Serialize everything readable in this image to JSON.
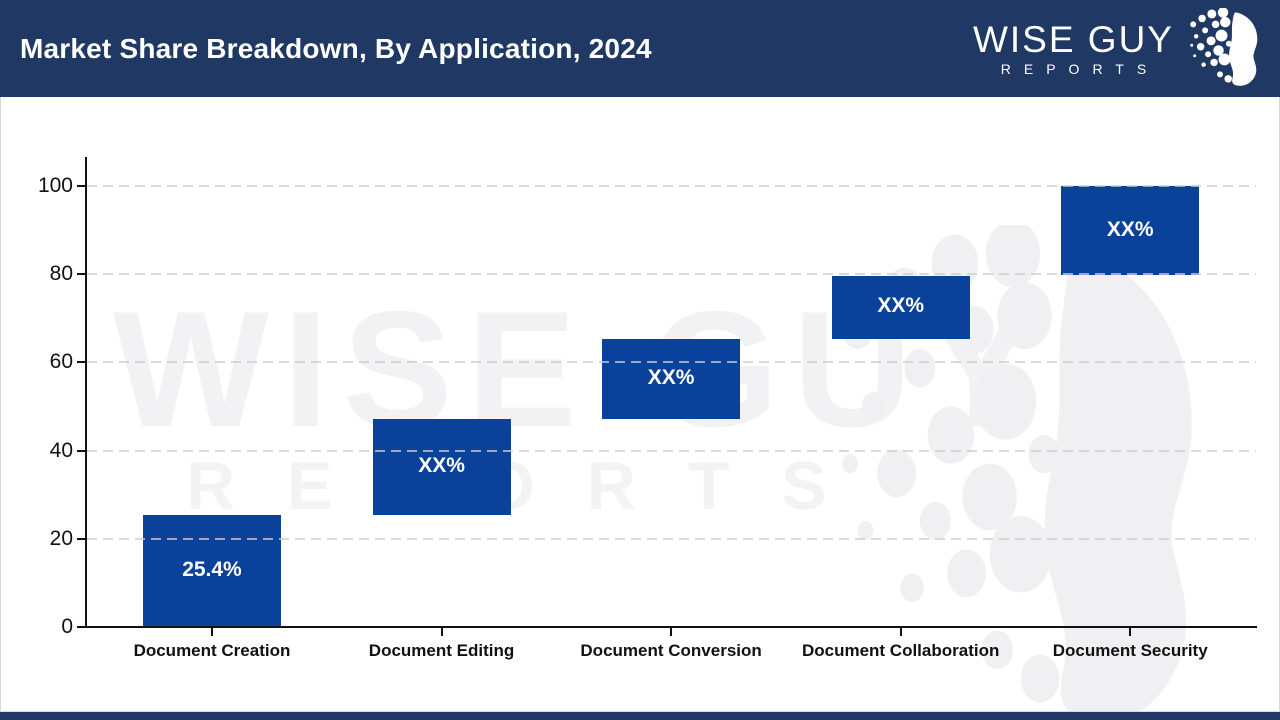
{
  "header": {
    "title": "Market Share Breakdown, By Application, 2024",
    "logo": {
      "line1": "WISE GUY",
      "line2": "REPORTS"
    }
  },
  "watermark": {
    "line1": "WISE GUY",
    "line2": "REPORTS"
  },
  "colors": {
    "header_bg": "#1F3864",
    "bar": "#0A429B",
    "grid": "#d0d0d0",
    "axis": "#111111",
    "bar_label_text": "#FFFFFF"
  },
  "chart_data": {
    "type": "bar",
    "subtype": "waterfall",
    "title": "Market Share Breakdown, By Application, 2024",
    "categories": [
      "Document Creation",
      "Document Editing",
      "Document Conversion",
      "Document Collaboration",
      "Document Security"
    ],
    "segments": [
      {
        "category": "Document Creation",
        "start": 0,
        "end": 25.4,
        "label": "25.4%"
      },
      {
        "category": "Document Editing",
        "start": 25.4,
        "end": 47.2,
        "label": "XX%"
      },
      {
        "category": "Document Conversion",
        "start": 47.2,
        "end": 65.3,
        "label": "XX%"
      },
      {
        "category": "Document Collaboration",
        "start": 65.3,
        "end": 79.7,
        "label": "XX%"
      },
      {
        "category": "Document Security",
        "start": 79.8,
        "end": 100,
        "label": "XX%"
      }
    ],
    "xlabel": "",
    "ylabel": "",
    "ylim": [
      0,
      100
    ],
    "yticks": [
      0,
      20,
      40,
      60,
      80,
      100
    ],
    "grid": "horizontal-dashed",
    "legend": "none"
  }
}
